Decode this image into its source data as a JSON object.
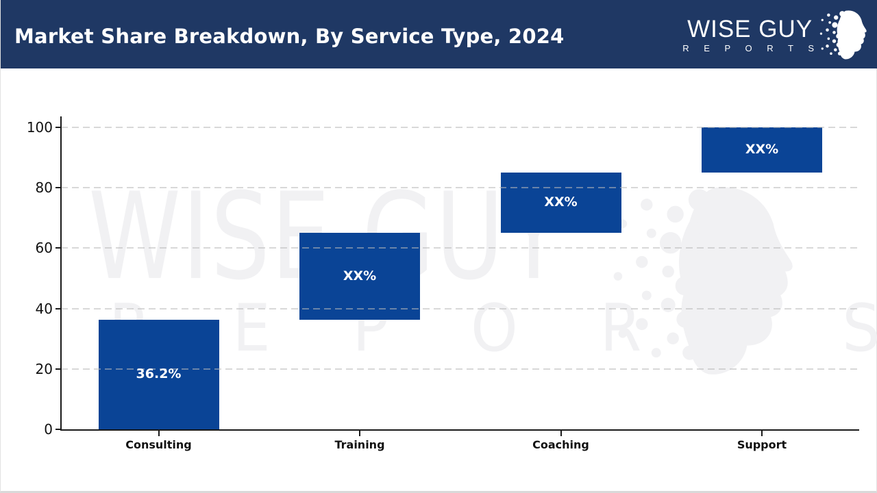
{
  "header": {
    "title": "Market Share Breakdown, By Service Type, 2024",
    "background_color": "#1f3864",
    "logo": {
      "line1": "WISE GUY",
      "line2": "R E P O R T S",
      "head_icon": "dotted-head-profile"
    }
  },
  "watermark": {
    "line1": "WISE GUY",
    "line2": "R E P O R T S",
    "head_icon": "dotted-head-profile",
    "color": "#f1f1f3"
  },
  "chart_data": {
    "type": "bar",
    "subtype": "waterfall",
    "title": "Market Share Breakdown, By Service Type, 2024",
    "categories": [
      "Consulting",
      "Training",
      "Coaching",
      "Support"
    ],
    "segments": [
      {
        "category": "Consulting",
        "start": 0,
        "end": 36.2,
        "label": "36.2%"
      },
      {
        "category": "Training",
        "start": 36.2,
        "end": 65,
        "label": "XX%"
      },
      {
        "category": "Coaching",
        "start": 65,
        "end": 85,
        "label": "XX%"
      },
      {
        "category": "Support",
        "start": 85,
        "end": 100,
        "label": "XX%"
      }
    ],
    "yticks": [
      0,
      20,
      40,
      60,
      80,
      100
    ],
    "ylim": [
      0,
      104
    ],
    "xlabel": "",
    "ylabel": "",
    "grid": true,
    "grid_style": "dashed",
    "bar_color": "#0a4496",
    "bar_label_color": "#ffffff",
    "legend": null
  }
}
